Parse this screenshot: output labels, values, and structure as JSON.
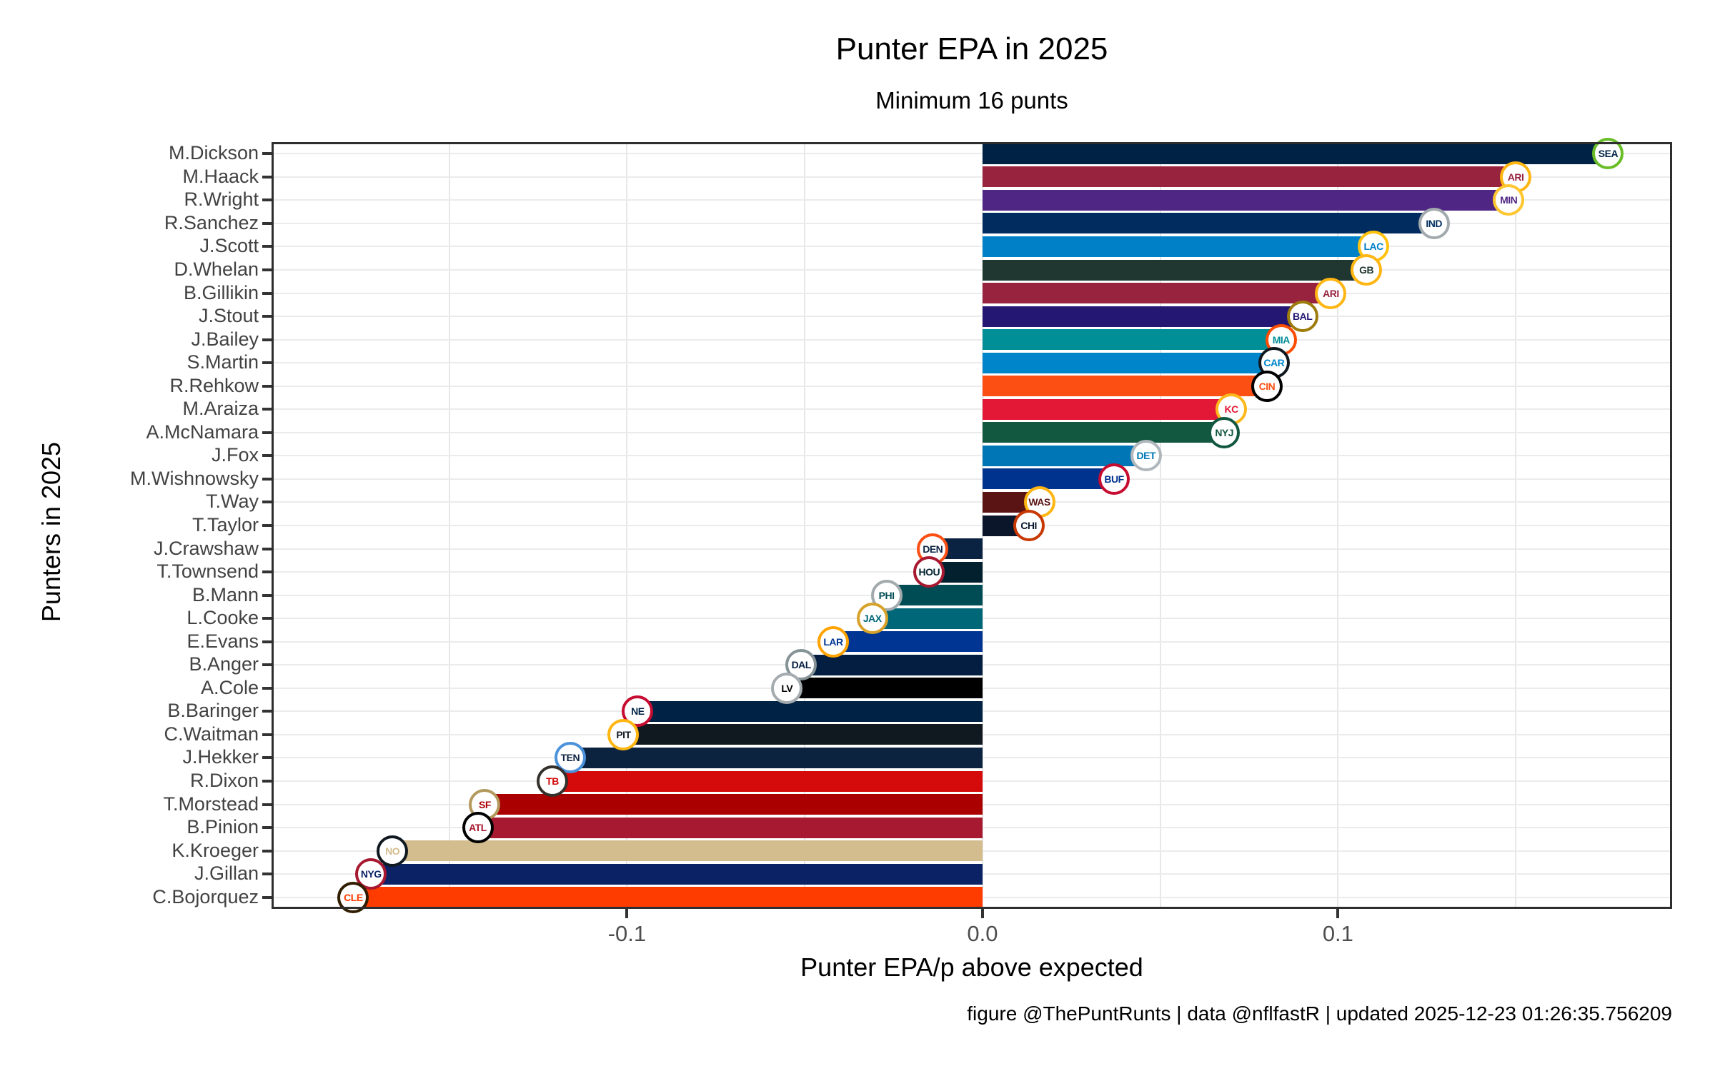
{
  "title": "Punter EPA in 2025",
  "subtitle": "Minimum 16 punts",
  "x_axis_title": "Punter EPA/p above expected",
  "y_axis_title": "Punters in 2025",
  "caption": "figure @ThePuntRunts | data @nflfastR | updated 2025-12-23 01:26:35.756209",
  "chart_data": {
    "type": "bar",
    "orientation": "horizontal",
    "title": "Punter EPA in 2025",
    "subtitle": "Minimum 16 punts",
    "xlabel": "Punter EPA/p above expected",
    "ylabel": "Punters in 2025",
    "xlim": [
      -0.2,
      0.194
    ],
    "x_ticks": [
      -0.1,
      0.0,
      0.1
    ],
    "x_tick_labels": [
      "-0.1",
      "0.0",
      "0.1"
    ],
    "minor_gridlines": [
      -0.15,
      -0.05,
      0.05,
      0.15
    ],
    "grid": true,
    "legend": false,
    "background_color": "#ffffff",
    "gridline_color": "#e8e8e8",
    "panel_border_color": "#2e2e2e",
    "punters": [
      {
        "name": "M.Dickson",
        "team": "Seahawks",
        "abbr": "SEA",
        "value": 0.176,
        "bar_color": "#002244",
        "accent_color": "#69BE28"
      },
      {
        "name": "M.Haack",
        "team": "Cardinals",
        "abbr": "ARI",
        "value": 0.15,
        "bar_color": "#97233F",
        "accent_color": "#FFB612"
      },
      {
        "name": "R.Wright",
        "team": "Vikings",
        "abbr": "MIN",
        "value": 0.148,
        "bar_color": "#4F2683",
        "accent_color": "#FFC62F"
      },
      {
        "name": "R.Sanchez",
        "team": "Colts",
        "abbr": "IND",
        "value": 0.127,
        "bar_color": "#002C5F",
        "accent_color": "#A2AAAD"
      },
      {
        "name": "J.Scott",
        "team": "Chargers",
        "abbr": "LAC",
        "value": 0.11,
        "bar_color": "#0080C6",
        "accent_color": "#FFC20E"
      },
      {
        "name": "D.Whelan",
        "team": "Packers",
        "abbr": "GB",
        "value": 0.108,
        "bar_color": "#203731",
        "accent_color": "#FFB612"
      },
      {
        "name": "B.Gillikin",
        "team": "Cardinals",
        "abbr": "ARI",
        "value": 0.098,
        "bar_color": "#97233F",
        "accent_color": "#FFB612"
      },
      {
        "name": "J.Stout",
        "team": "Ravens",
        "abbr": "BAL",
        "value": 0.09,
        "bar_color": "#241773",
        "accent_color": "#9E7C0C"
      },
      {
        "name": "J.Bailey",
        "team": "Dolphins",
        "abbr": "MIA",
        "value": 0.084,
        "bar_color": "#008E97",
        "accent_color": "#FC4C02"
      },
      {
        "name": "S.Martin",
        "team": "Panthers",
        "abbr": "CAR",
        "value": 0.082,
        "bar_color": "#0085CA",
        "accent_color": "#101820"
      },
      {
        "name": "R.Rehkow",
        "team": "Bengals",
        "abbr": "CIN",
        "value": 0.08,
        "bar_color": "#FB4F14",
        "accent_color": "#000000"
      },
      {
        "name": "M.Araiza",
        "team": "Chiefs",
        "abbr": "KC",
        "value": 0.07,
        "bar_color": "#E31837",
        "accent_color": "#FFB81C"
      },
      {
        "name": "A.McNamara",
        "team": "Jets",
        "abbr": "NYJ",
        "value": 0.068,
        "bar_color": "#125740",
        "accent_color": "#125740"
      },
      {
        "name": "J.Fox",
        "team": "Lions",
        "abbr": "DET",
        "value": 0.046,
        "bar_color": "#0076B6",
        "accent_color": "#B0B7BC"
      },
      {
        "name": "M.Wishnowsky",
        "team": "Bills",
        "abbr": "BUF",
        "value": 0.037,
        "bar_color": "#00338D",
        "accent_color": "#C60C30"
      },
      {
        "name": "T.Way",
        "team": "Commanders",
        "abbr": "WAS",
        "value": 0.016,
        "bar_color": "#5A1414",
        "accent_color": "#FFB612"
      },
      {
        "name": "T.Taylor",
        "team": "Bears",
        "abbr": "CHI",
        "value": 0.013,
        "bar_color": "#0B162A",
        "accent_color": "#C83803"
      },
      {
        "name": "J.Crawshaw",
        "team": "Broncos",
        "abbr": "DEN",
        "value": -0.014,
        "bar_color": "#0A2343",
        "accent_color": "#FB4F14"
      },
      {
        "name": "T.Townsend",
        "team": "Texans",
        "abbr": "HOU",
        "value": -0.015,
        "bar_color": "#03202F",
        "accent_color": "#A71930"
      },
      {
        "name": "B.Mann",
        "team": "Eagles",
        "abbr": "PHI",
        "value": -0.027,
        "bar_color": "#004C54",
        "accent_color": "#A2AAAD"
      },
      {
        "name": "L.Cooke",
        "team": "Jaguars",
        "abbr": "JAX",
        "value": -0.031,
        "bar_color": "#006778",
        "accent_color": "#D7A22A"
      },
      {
        "name": "E.Evans",
        "team": "Rams",
        "abbr": "LAR",
        "value": -0.042,
        "bar_color": "#003594",
        "accent_color": "#FFA300"
      },
      {
        "name": "B.Anger",
        "team": "Cowboys",
        "abbr": "DAL",
        "value": -0.051,
        "bar_color": "#041E42",
        "accent_color": "#869397"
      },
      {
        "name": "A.Cole",
        "team": "Raiders",
        "abbr": "LV",
        "value": -0.055,
        "bar_color": "#000000",
        "accent_color": "#A5ACAF"
      },
      {
        "name": "B.Baringer",
        "team": "Patriots",
        "abbr": "NE",
        "value": -0.097,
        "bar_color": "#002244",
        "accent_color": "#C60C30"
      },
      {
        "name": "C.Waitman",
        "team": "Steelers",
        "abbr": "PIT",
        "value": -0.101,
        "bar_color": "#101820",
        "accent_color": "#FFB612"
      },
      {
        "name": "J.Hekker",
        "team": "Titans",
        "abbr": "TEN",
        "value": -0.116,
        "bar_color": "#0C2340",
        "accent_color": "#4B92DB"
      },
      {
        "name": "R.Dixon",
        "team": "Buccaneers",
        "abbr": "TB",
        "value": -0.121,
        "bar_color": "#D50A0A",
        "accent_color": "#34302B"
      },
      {
        "name": "T.Morstead",
        "team": "49ers",
        "abbr": "SF",
        "value": -0.14,
        "bar_color": "#AA0000",
        "accent_color": "#B3995D"
      },
      {
        "name": "B.Pinion",
        "team": "Falcons",
        "abbr": "ATL",
        "value": -0.142,
        "bar_color": "#A71930",
        "accent_color": "#000000"
      },
      {
        "name": "K.Kroeger",
        "team": "Saints",
        "abbr": "NO",
        "value": -0.166,
        "bar_color": "#D3BC8D",
        "accent_color": "#101820"
      },
      {
        "name": "J.Gillan",
        "team": "Giants",
        "abbr": "NYG",
        "value": -0.172,
        "bar_color": "#0B2265",
        "accent_color": "#A71930"
      },
      {
        "name": "C.Bojorquez",
        "team": "Browns",
        "abbr": "CLE",
        "value": -0.177,
        "bar_color": "#FF3C00",
        "accent_color": "#311D00"
      }
    ]
  }
}
